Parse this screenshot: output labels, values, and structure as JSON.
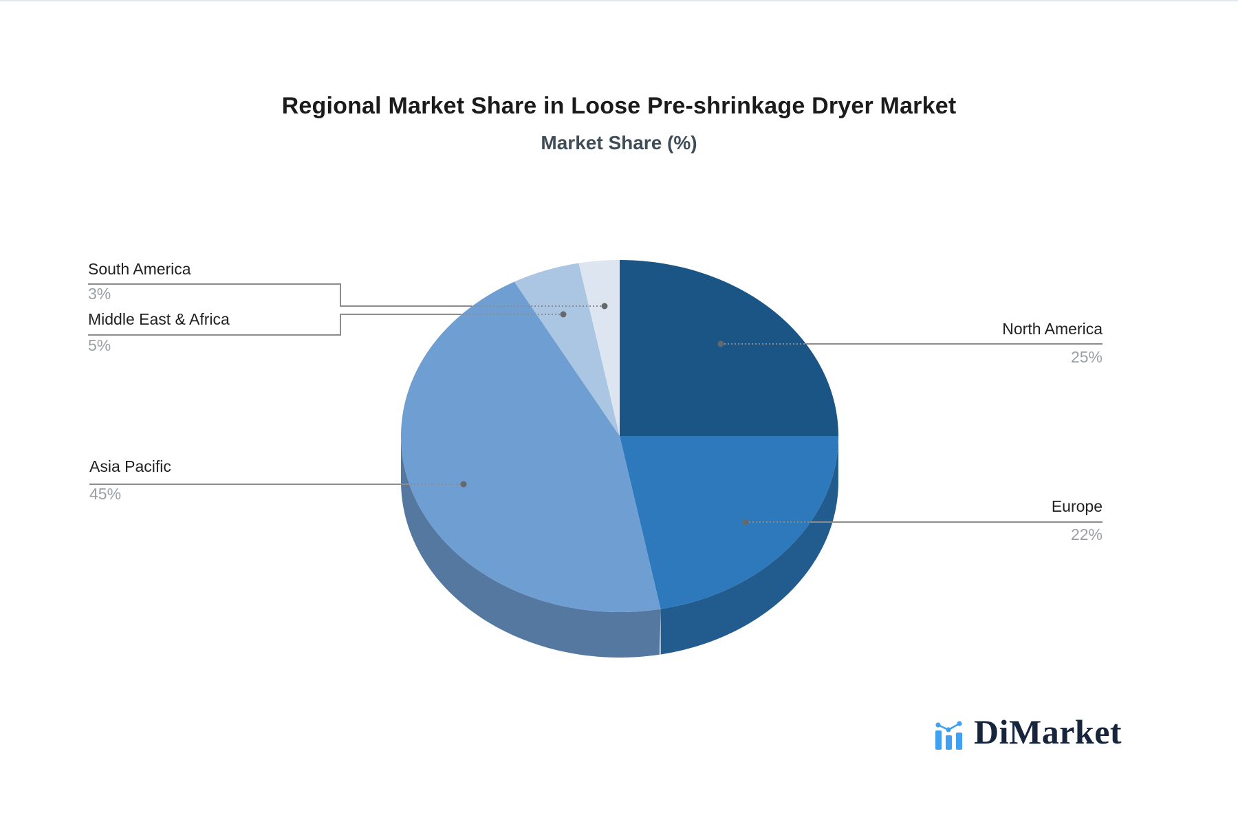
{
  "header": {
    "title": "Regional Market Share in Loose Pre-shrinkage Dryer Market",
    "subtitle": "Market Share (%)"
  },
  "chart_data": {
    "type": "pie",
    "style": "3d",
    "title": "Regional Market Share in Loose Pre-shrinkage Dryer Market",
    "subtitle": "Market Share (%)",
    "unit": "%",
    "start_angle_deg": -90,
    "direction": "clockwise",
    "legend_position": "callout-labels",
    "slices": [
      {
        "label": "North America",
        "value": 25,
        "display": "25%",
        "color": "#1a5586"
      },
      {
        "label": "Europe",
        "value": 22,
        "display": "22%",
        "color": "#2d79bc"
      },
      {
        "label": "Asia Pacific",
        "value": 45,
        "display": "45%",
        "color": "#6f9ed3"
      },
      {
        "label": "Middle East & Africa",
        "value": 5,
        "display": "5%",
        "color": "#aac6e2"
      },
      {
        "label": "South America",
        "value": 3,
        "display": "3%",
        "color": "#dde6f0"
      }
    ],
    "connector_line_color": "#8c8c8c",
    "connector_dot_color": "#64696e"
  },
  "branding": {
    "logo_text": "DiMarket",
    "logo_text_color": "#16243c",
    "logo_icon": "bar-chart-icon",
    "logo_icon_color": "#42a0f0"
  }
}
